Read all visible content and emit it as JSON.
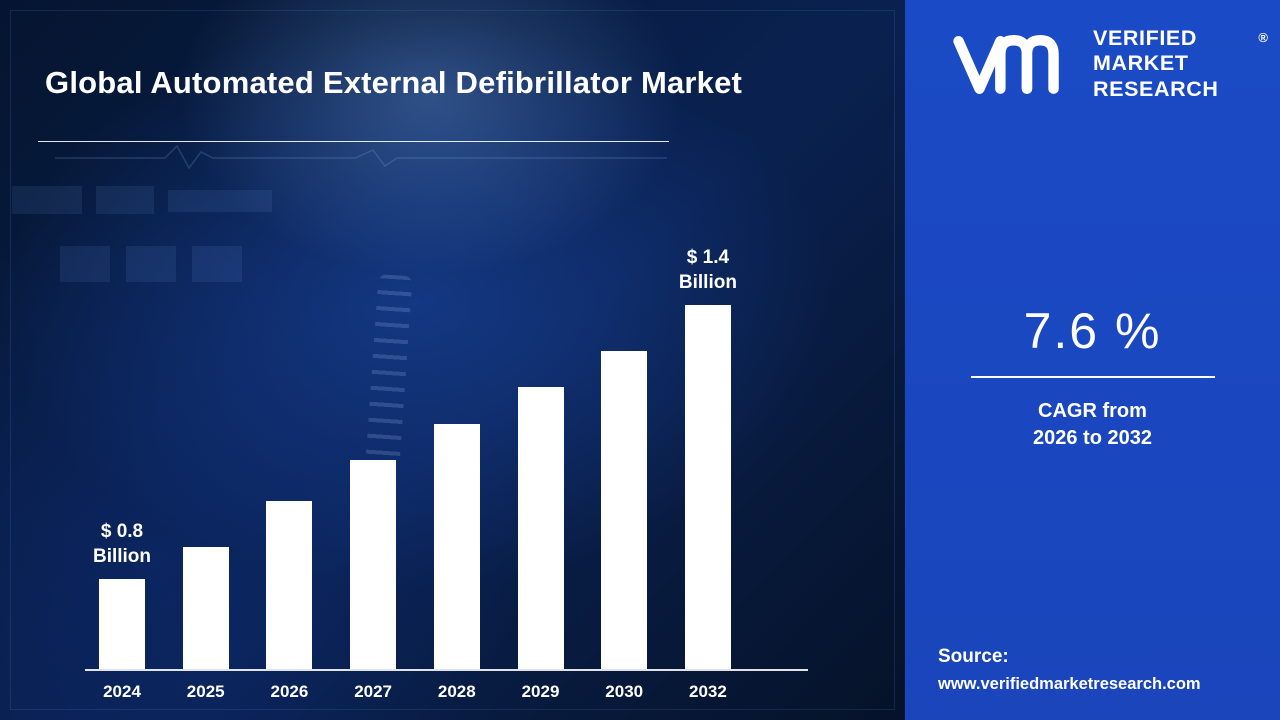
{
  "title": "Global Automated External Defibrillator Market",
  "logo": {
    "line1": "VERIFIED",
    "line2": "MARKET",
    "line3": "RESEARCH",
    "registered": "®"
  },
  "stats": {
    "value": "7.6 %",
    "label1": "CAGR from",
    "label2": "2026 to 2032"
  },
  "source": {
    "label": "Source:",
    "url": "www.verifiedmarketresearch.com"
  },
  "colors": {
    "panel_blue": "#1b4ac6",
    "bar_white": "#ffffff",
    "background_navy": "#071a3e"
  },
  "chart_data": {
    "type": "bar",
    "title": "Global Automated External Defibrillator Market",
    "categories": [
      "2024",
      "2025",
      "2026",
      "2027",
      "2028",
      "2029",
      "2030",
      "2032"
    ],
    "values": [
      0.8,
      0.87,
      0.97,
      1.06,
      1.14,
      1.22,
      1.3,
      1.4
    ],
    "unit": "USD Billion",
    "xlabel": "",
    "ylabel": "",
    "ylim": [
      0,
      1.5
    ],
    "grid": false,
    "legend": false,
    "bar_color": "#ffffff",
    "annotations": [
      {
        "index": 0,
        "line1": "$ 0.8",
        "line2": "Billion"
      },
      {
        "index": 7,
        "line1": "$ 1.4",
        "line2": "Billion"
      }
    ]
  }
}
